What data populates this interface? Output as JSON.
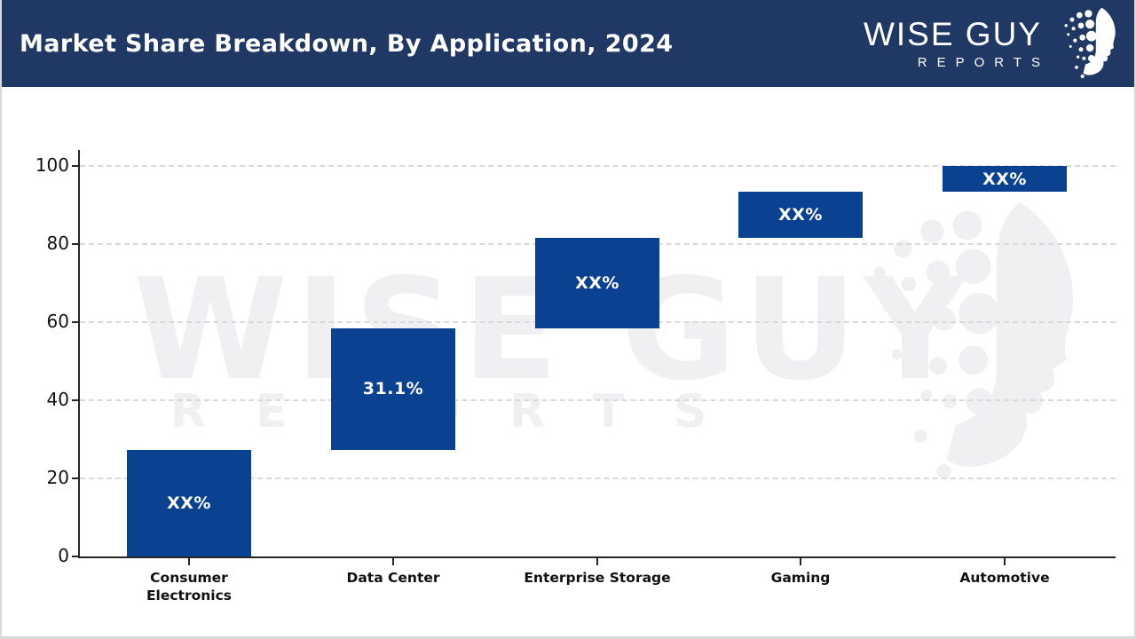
{
  "header": {
    "title": "Market Share Breakdown, By Application, 2024",
    "bg_color": "#1f3864",
    "logo": {
      "name": "WISE GUY REPORTS",
      "line1": "WISE GUY",
      "line2": "REPORTS"
    }
  },
  "watermark": {
    "line1": "WISE GUY",
    "line2": "REPORTS"
  },
  "chart_data": {
    "type": "bar",
    "subtype": "waterfall",
    "title": "Market Share Breakdown, By Application, 2024",
    "categories": [
      "Consumer\nElectronics",
      "Data Center",
      "Enterprise Storage",
      "Gaming",
      "Automotive"
    ],
    "segments": [
      {
        "category": "Consumer Electronics",
        "start": 0,
        "end": 27.3,
        "value": 27.3,
        "label": "XX%"
      },
      {
        "category": "Data Center",
        "start": 27.3,
        "end": 58.4,
        "value": 31.1,
        "label": "31.1%"
      },
      {
        "category": "Enterprise Storage",
        "start": 58.4,
        "end": 81.7,
        "value": 23.3,
        "label": "XX%"
      },
      {
        "category": "Gaming",
        "start": 81.7,
        "end": 93.3,
        "value": 11.6,
        "label": "XX%"
      },
      {
        "category": "Automotive",
        "start": 93.3,
        "end": 100,
        "value": 6.7,
        "label": "XX%"
      }
    ],
    "yticks": [
      0,
      20,
      40,
      60,
      80,
      100
    ],
    "ylim": [
      0,
      104
    ],
    "xlabel": "",
    "ylabel": "",
    "grid": "horizontal-dashed",
    "legend": "none",
    "bar_color": "#0b4191",
    "bar_label_color": "#ffffff",
    "gridline_color": "#d9d9d9",
    "axis_color": "#262626"
  }
}
